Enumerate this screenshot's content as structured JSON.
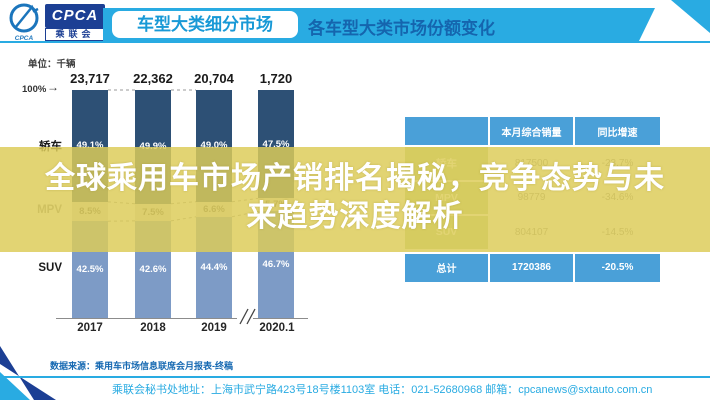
{
  "header": {
    "logo": {
      "acronym": "CPCA",
      "name_cn": "乘联会"
    },
    "title": "车型大类细分市场",
    "subtitle": "各车型大类市场份额变化"
  },
  "chart_data": {
    "type": "bar",
    "stacked": true,
    "percent_axis": true,
    "unit_label": "单位：千辆",
    "axis_100_label": "100%",
    "categories": [
      "2017",
      "2018",
      "2019",
      "2020.1"
    ],
    "totals": [
      23717,
      22362,
      20704,
      1720
    ],
    "totals_display": [
      "23,717",
      "22,362",
      "20,704",
      "1,720"
    ],
    "series": [
      {
        "name": "轿车",
        "values": [
          49.1,
          49.9,
          49.0,
          47.5
        ],
        "labels": [
          "49.1%",
          "49.9%",
          "49.0%",
          "47.5%"
        ],
        "color": "#2D5075",
        "label_color": "#ffffff"
      },
      {
        "name": "MPV",
        "values": [
          8.5,
          7.5,
          6.6,
          5.7
        ],
        "labels": [
          "8.5%",
          "7.5%",
          "6.6%",
          "5.7%"
        ],
        "color": "#D9D9D9",
        "label_color": "#595959"
      },
      {
        "name": "SUV",
        "values": [
          42.5,
          42.6,
          44.4,
          46.7
        ],
        "labels": [
          "42.5%",
          "42.6%",
          "44.4%",
          "46.7%"
        ],
        "color": "#7D9BC6",
        "label_color": "#ffffff"
      }
    ],
    "ylim": [
      0,
      100
    ],
    "axis_break_between": [
      "2019",
      "2020.1"
    ],
    "grid": false,
    "legend": "left-side series labels"
  },
  "table": {
    "headers": [
      "",
      "本月综合销量",
      "同比增速"
    ],
    "rows": [
      {
        "label": "轿车",
        "sales": "817500",
        "yoy": "-23.7%"
      },
      {
        "label": "MPV",
        "sales": "98779",
        "yoy": "-34.6%"
      },
      {
        "label": "SUV",
        "sales": "804107",
        "yoy": "-14.5%"
      }
    ],
    "total": {
      "label": "总计",
      "sales": "1720386",
      "yoy": "-20.5%"
    }
  },
  "overlay": {
    "line1": "全球乘用车市场产销排名揭秘，竞争态势与未",
    "line2": "来趋势深度解析"
  },
  "footer": {
    "source": "数据来源：乘用车市场信息联席会月报表-终稿",
    "contact": "乘联会秘书处地址：上海市武宁路423号18号楼1103室 电话：021-52680968 邮箱：cpcanews@sxtauto.com.cn"
  },
  "colors": {
    "cyan_accent": "#29ABE2",
    "dark_blue": "#1565AE",
    "table_blue": "#4AA0D8",
    "label_green": "#B3CA8A",
    "overlay_yellow": "#DDCC58",
    "sedan_navy": "#2D5075",
    "mpv_gray": "#D9D9D9",
    "suv_blue": "#7D9BC6"
  }
}
